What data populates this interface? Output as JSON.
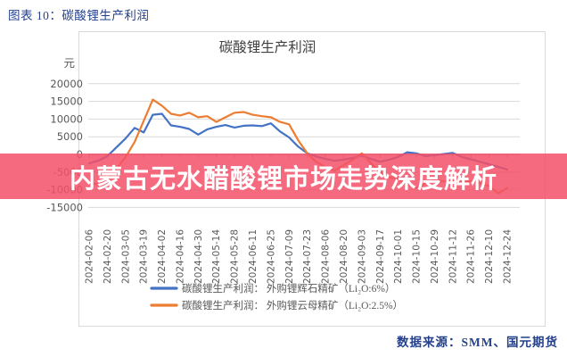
{
  "page": {
    "caption": "图表 10：碳酸锂生产利润",
    "source": "数据来源：SMM、国元期货"
  },
  "overlay": {
    "text": "内蒙古无水醋酸锂市场走势深度解析",
    "background_rgba": "rgba(243,80,103,0.85)",
    "text_color": "#FFFFFF"
  },
  "chart_data": {
    "type": "line",
    "title": "碳酸锂生产利润",
    "y_unit": "元",
    "ylim": [
      -15000,
      20000
    ],
    "y_ticks": [
      20000,
      15000,
      10000,
      5000,
      0,
      -5000,
      -10000,
      -15000
    ],
    "grid": true,
    "legend_position": "bottom",
    "x_tick_labels": [
      "2024-02-06",
      "2024-02-20",
      "2024-03-05",
      "2024-03-19",
      "2024-04-02",
      "2024-04-16",
      "2024-04-30",
      "2024-05-14",
      "2024-05-28",
      "2024-06-11",
      "2024-06-25",
      "2024-07-09",
      "2024-07-23",
      "2024-08-06",
      "2024-08-20",
      "2024-09-03",
      "2024-09-17",
      "2024-10-01",
      "2024-10-15",
      "2024-10-29",
      "2024-11-12",
      "2024-11-26",
      "2024-12-10",
      "2024-12-24"
    ],
    "x": [
      "2024-02-06",
      "2024-02-13",
      "2024-02-20",
      "2024-02-27",
      "2024-03-05",
      "2024-03-12",
      "2024-03-19",
      "2024-03-26",
      "2024-04-02",
      "2024-04-09",
      "2024-04-16",
      "2024-04-23",
      "2024-04-30",
      "2024-05-07",
      "2024-05-14",
      "2024-05-21",
      "2024-05-28",
      "2024-06-04",
      "2024-06-11",
      "2024-06-18",
      "2024-06-25",
      "2024-07-02",
      "2024-07-09",
      "2024-07-16",
      "2024-07-23",
      "2024-07-30",
      "2024-08-06",
      "2024-08-13",
      "2024-08-20",
      "2024-08-27",
      "2024-09-03",
      "2024-09-10",
      "2024-09-17",
      "2024-09-24",
      "2024-10-01",
      "2024-10-08",
      "2024-10-15",
      "2024-10-22",
      "2024-10-29",
      "2024-11-05",
      "2024-11-12",
      "2024-11-19",
      "2024-11-26",
      "2024-12-03",
      "2024-12-10",
      "2024-12-17",
      "2024-12-24"
    ],
    "series": [
      {
        "name": "碳酸锂生产利润： 外购锂辉石精矿（Li₂O:6%）",
        "color": "#4472C4",
        "values": [
          -2500,
          -1800,
          -500,
          2000,
          4500,
          7500,
          6200,
          11200,
          11500,
          8200,
          7800,
          7200,
          5600,
          7100,
          7800,
          8300,
          7600,
          8100,
          8200,
          8000,
          8800,
          6500,
          4800,
          2200,
          300,
          -600,
          -1300,
          -1800,
          -1500,
          -1000,
          -300,
          -1300,
          -2100,
          -1500,
          -700,
          600,
          300,
          -500,
          -200,
          100,
          400,
          -700,
          -1400,
          -2100,
          -2800,
          -3500,
          -4300
        ]
      },
      {
        "name": "碳酸锂生产利润： 外购锂云母精矿（Li₂O:2.5%）",
        "color": "#ED7D31",
        "values": [
          -8000,
          -8500,
          -7500,
          -4000,
          -800,
          3500,
          9500,
          15500,
          13800,
          11500,
          11000,
          11800,
          10500,
          10800,
          9200,
          10500,
          11800,
          12000,
          11200,
          10800,
          10500,
          9200,
          8500,
          4000,
          300,
          -2200,
          -3600,
          -4600,
          -3000,
          -1500,
          300,
          -2500,
          -5000,
          -6500,
          -7000,
          -8500,
          -9500,
          -8200,
          -7300,
          -7600,
          -7400,
          -7800,
          -7600,
          -8200,
          -9000,
          -11000,
          -9500
        ]
      }
    ],
    "axis_colors": {
      "grid": "#d9d9d9",
      "zero_axis": "#9e9e9e",
      "tick_text": "#595959",
      "title_text": "#404040"
    }
  }
}
